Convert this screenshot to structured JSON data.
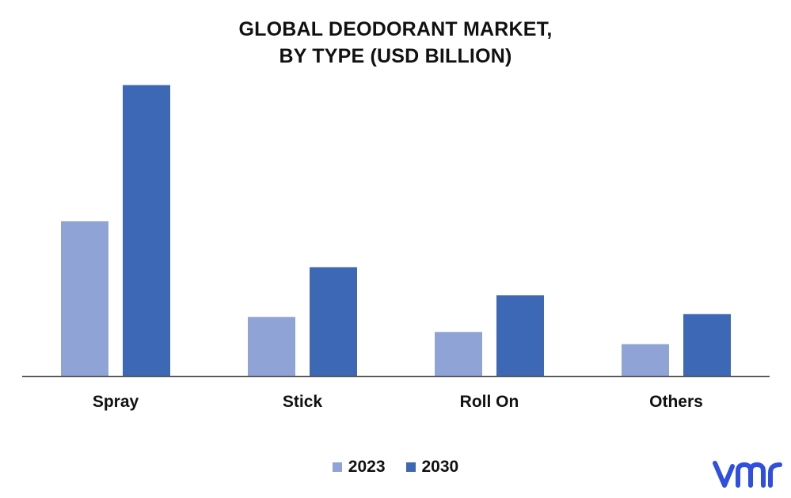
{
  "chart_data": {
    "type": "bar",
    "title_line1": "GLOBAL DEODORANT MARKET,",
    "title_line2": "BY TYPE (USD BILLION)",
    "categories": [
      "Spray",
      "Stick",
      "Roll On",
      "Others"
    ],
    "series": [
      {
        "name": "2023",
        "color": "#8fa3d6",
        "values": [
          16.5,
          6.3,
          4.7,
          3.4
        ]
      },
      {
        "name": "2030",
        "color": "#3d68b5",
        "values": [
          31.0,
          11.6,
          8.6,
          6.6
        ]
      }
    ],
    "ylim": [
      0,
      35
    ],
    "grid": false,
    "legend_position": "bottom-center"
  },
  "logo": {
    "name": "vmr-logo",
    "text": "vmr",
    "color": "#2f4fe0"
  }
}
